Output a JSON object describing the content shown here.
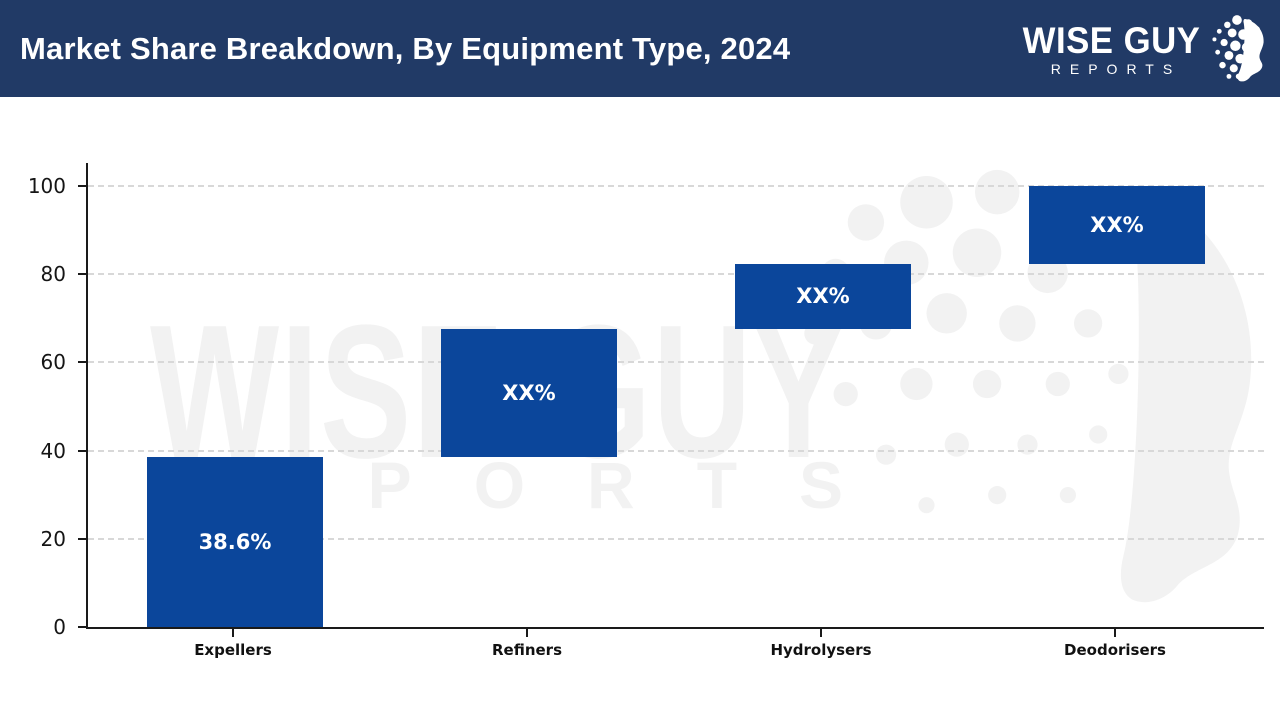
{
  "header": {
    "title": "Market Share Breakdown, By Equipment Type, 2024",
    "logo": {
      "wordmark": "WISE GUY",
      "subtext": "REPORTS"
    }
  },
  "watermark": {
    "line1": "WISE GUY",
    "line2": "REPORTS"
  },
  "colors": {
    "header_bg": "#213a66",
    "bar": "#0b469b",
    "bar_label": "#ffffff",
    "grid": "#d8d8d8",
    "axis": "#1a1a1a",
    "watermark": "#f2f2f2",
    "page_border": "#d9d9d9"
  },
  "chart_data": {
    "type": "bar",
    "subtype": "waterfall",
    "title": "Market Share Breakdown, By Equipment Type, 2024",
    "xlabel": "",
    "ylabel": "",
    "categories": [
      "Expellers",
      "Refiners",
      "Hydrolysers",
      "Deodorisers"
    ],
    "bars": [
      {
        "category": "Expellers",
        "label": "38.6%",
        "from": 0,
        "to": 38.6
      },
      {
        "category": "Refiners",
        "label": "XX%",
        "from": 38.6,
        "to": 67.6
      },
      {
        "category": "Hydrolysers",
        "label": "XX%",
        "from": 67.6,
        "to": 82.3
      },
      {
        "category": "Deodorisers",
        "label": "XX%",
        "from": 82.3,
        "to": 100
      }
    ],
    "yticks": [
      0,
      20,
      40,
      60,
      80,
      100
    ],
    "ylim": [
      0,
      105.2
    ],
    "grid": "horizontal-dashed",
    "legend": "none",
    "bar_width_fraction": 0.15
  }
}
